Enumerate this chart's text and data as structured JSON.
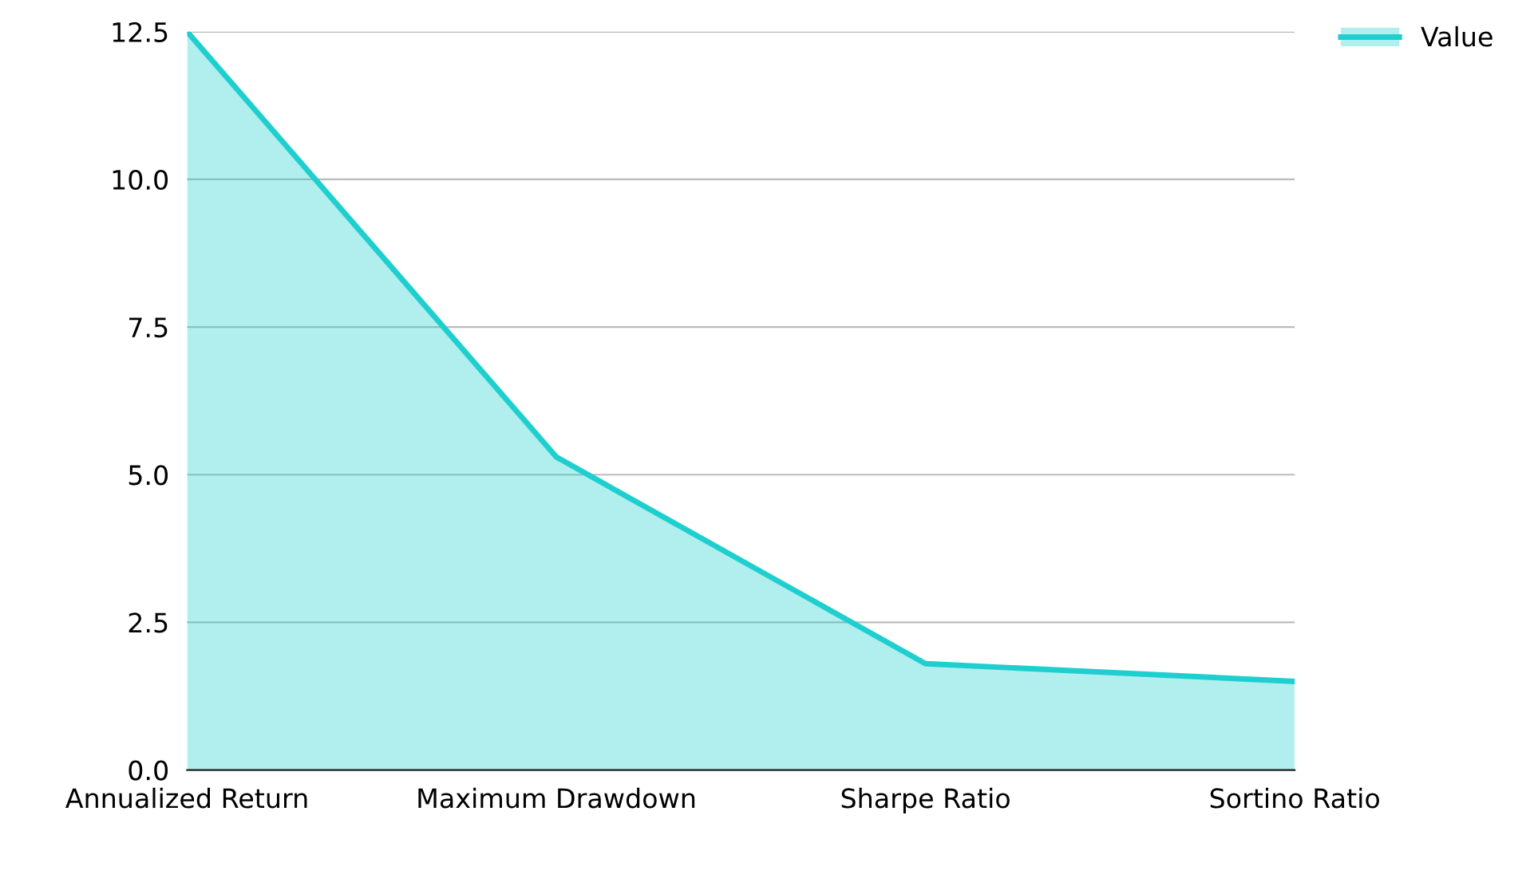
{
  "chart_data": {
    "type": "area",
    "categories": [
      "Annualized Return",
      "Maximum Drawdown",
      "Sharpe Ratio",
      "Sortino Ratio"
    ],
    "series": [
      {
        "name": "Value",
        "color": "#1fcfcf",
        "values": [
          12.5,
          5.3,
          1.8,
          1.5
        ]
      }
    ],
    "ylim": [
      0,
      12.5
    ],
    "yticks": [
      {
        "value": 0,
        "label": "0.0"
      },
      {
        "value": 2.5,
        "label": "2.5"
      },
      {
        "value": 5,
        "label": "5.0"
      },
      {
        "value": 7.5,
        "label": "7.5"
      },
      {
        "value": 10,
        "label": "10.0"
      },
      {
        "value": 12.5,
        "label": "12.5"
      }
    ],
    "grid": "y",
    "legend": "top right"
  }
}
